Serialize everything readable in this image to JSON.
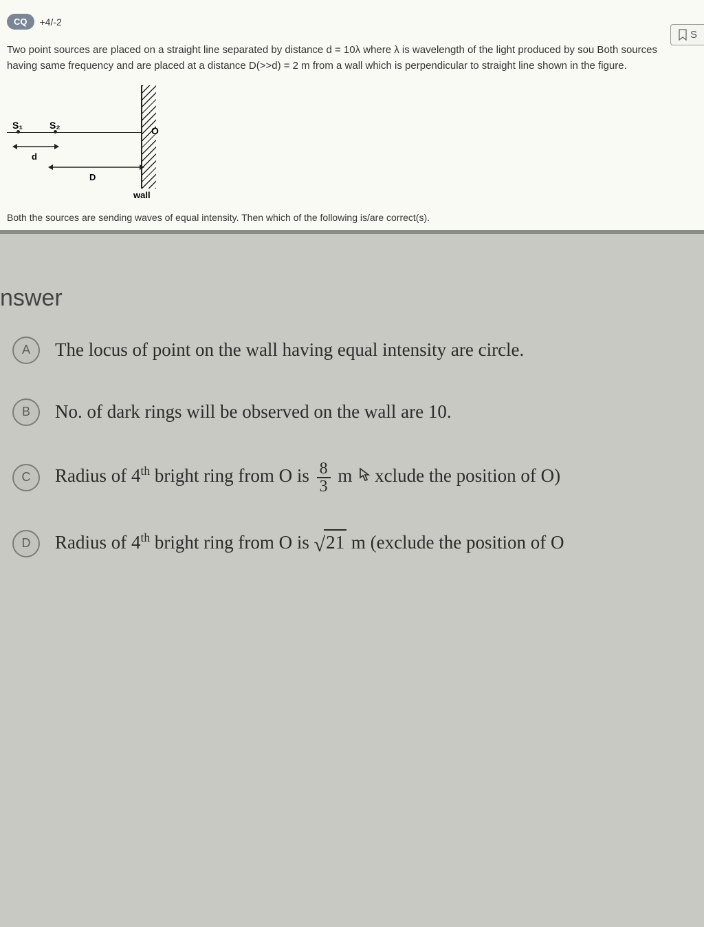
{
  "header": {
    "badge": "CQ",
    "marks": "+4/-2",
    "save_label": "S"
  },
  "question": {
    "text_html": "Two point sources are placed on a straight line separated by distance d = 10λ where λ is wavelength of the light produced by sou Both sources having same frequency and are placed at a distance D(>>d) = 2 m from a wall which is perpendicular to straight line shown in the figure.",
    "followup": "Both the sources are sending waves of equal intensity. Then which of the following is/are correct(s)."
  },
  "figure": {
    "s1": "S₁",
    "s2": "S₂",
    "o": "O",
    "d": "d",
    "D": "D",
    "wall": "wall",
    "line_color": "#222222"
  },
  "answer": {
    "title": "nswer",
    "options": [
      {
        "letter": "A",
        "html": "The locus of point on the wall having equal intensity are circle."
      },
      {
        "letter": "B",
        "html": "No. of dark rings will be observed on the wall are 10."
      },
      {
        "letter": "C",
        "html": "Radius of 4<sup>th</sup> bright ring from O is <span class='frac'><span class='num'>8</span><span class='den'>3</span></span> m <span class='cursor-glyph'><svg width='22' height='24' viewBox='0 0 22 24'><path d='M3 3 L3 16 L7 13 L10 20 L13 19 L10 12 L15 12 Z' fill='none' stroke='#2a2c28' stroke-width='1.6'/></svg></span>xclude the position of O)"
      },
      {
        "letter": "D",
        "html": "Radius of 4<sup>th</sup> bright ring from O is <span class='radical'>√</span><span class='sqrt'>21</span> m (exclude the position of O"
      }
    ]
  },
  "colors": {
    "upper_bg": "#fafaf5",
    "lower_bg": "#c7c9c2",
    "badge_bg": "#7a8596",
    "opt_text": "#2a2c28"
  }
}
